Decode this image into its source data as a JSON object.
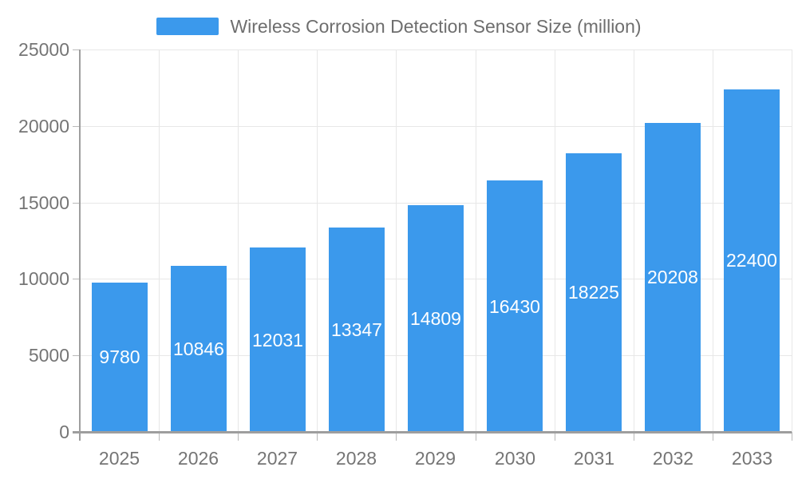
{
  "legend": {
    "label": "Wireless Corrosion Detection Sensor Size (million)"
  },
  "chart_data": {
    "type": "bar",
    "title": "Wireless Corrosion Detection Sensor Size (million)",
    "series_name": "Wireless Corrosion Detection Sensor Size (million)",
    "categories": [
      "2025",
      "2026",
      "2027",
      "2028",
      "2029",
      "2030",
      "2031",
      "2032",
      "2033"
    ],
    "values": [
      9780,
      10846,
      12031,
      13347,
      14809,
      16430,
      18225,
      20208,
      22400
    ],
    "xlabel": "",
    "ylabel": "",
    "ylim": [
      0,
      25000
    ],
    "yticks": [
      0,
      5000,
      10000,
      15000,
      20000,
      25000
    ],
    "grid": true,
    "legend_position": "top",
    "value_labels": "inside-center",
    "colors": {
      "bar": "#3B99EC",
      "value_label": "#FFFFFF",
      "axis_label": "#757575",
      "legend_text": "#6E6E6E",
      "gridline": "#E7E7E7",
      "axis_line": "#9E9E9E",
      "tick": "#B9B9B9",
      "background": "#FFFFFF"
    }
  }
}
